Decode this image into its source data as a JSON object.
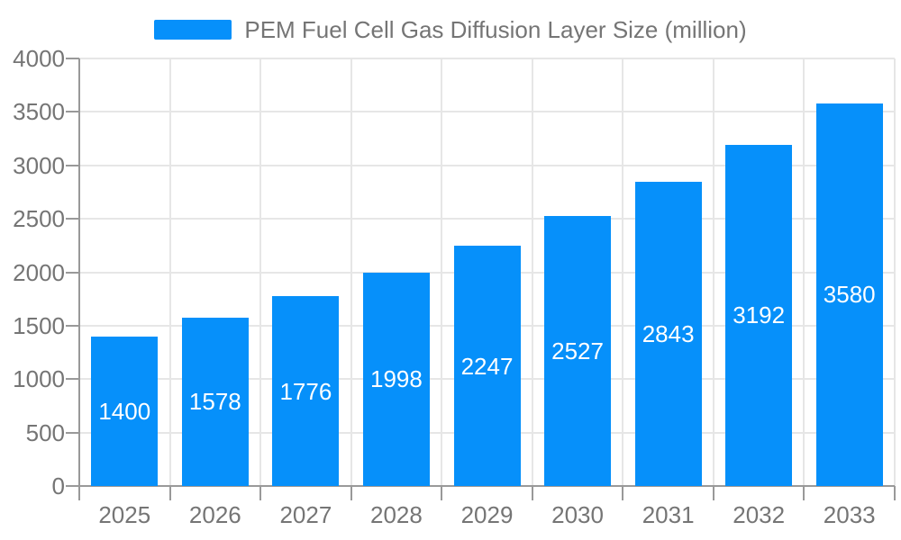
{
  "legend": {
    "label": "PEM Fuel Cell Gas Diffusion Layer Size (million)"
  },
  "chart_data": {
    "type": "bar",
    "title": "",
    "categories": [
      "2025",
      "2026",
      "2027",
      "2028",
      "2029",
      "2030",
      "2031",
      "2032",
      "2033"
    ],
    "series": [
      {
        "name": "PEM Fuel Cell Gas Diffusion Layer Size (million)",
        "values": [
          1400,
          1578,
          1776,
          1998,
          2247,
          2527,
          2843,
          3192,
          3580
        ]
      }
    ],
    "bar_value_labels": [
      "1400",
      "1578",
      "1776",
      "1998",
      "2247",
      "2527",
      "2843",
      "3192",
      "3580"
    ],
    "xlabel": "",
    "ylabel": "",
    "ylim": [
      0,
      4000
    ],
    "yticks": [
      0,
      500,
      1000,
      1500,
      2000,
      2500,
      3000,
      3500,
      4000
    ],
    "grid": true,
    "legend_position": "top",
    "value_labels_position": "inside-center",
    "colors": {
      "bar": "#0690FA",
      "grid_line": "#E6E6E6",
      "axis_line": "#999999",
      "tick_text": "#757575",
      "value_text": "#FFFFFF",
      "legend_text": "#757575",
      "background": "#FFFFFF"
    }
  }
}
